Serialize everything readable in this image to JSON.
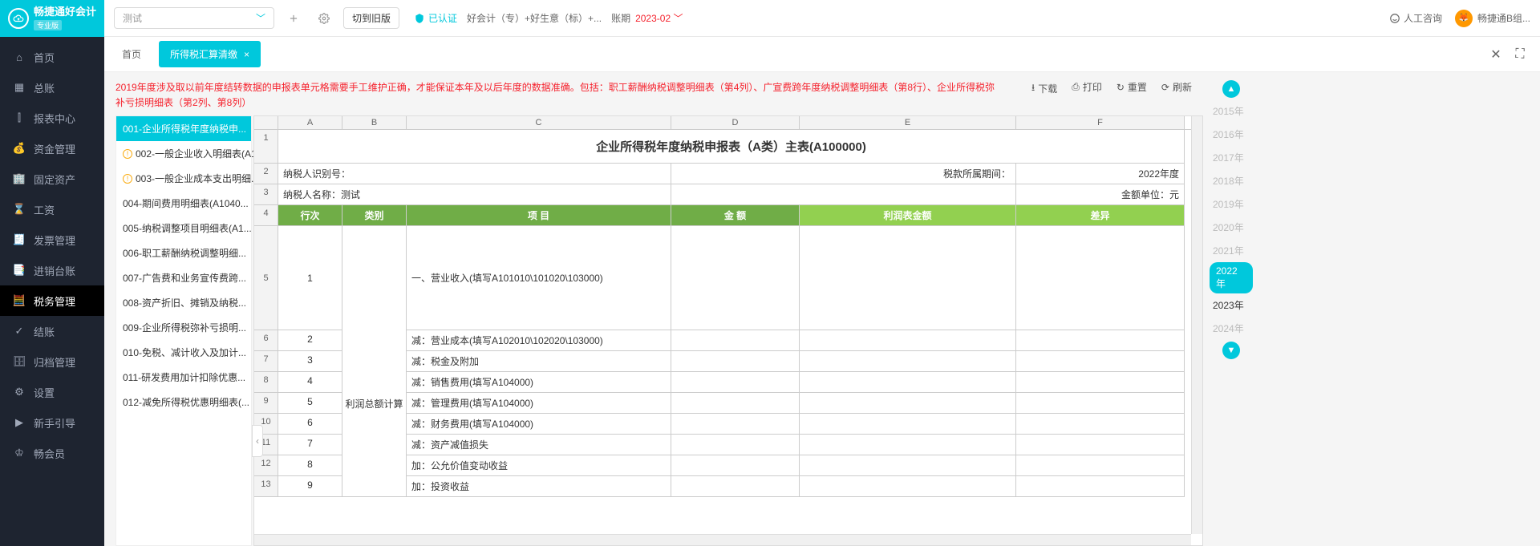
{
  "brand": {
    "name": "畅捷通好会计",
    "edition": "专业版"
  },
  "topbar": {
    "company": "测试",
    "old_version": "切到旧版",
    "status": "已认证",
    "plan": "好会计（专）+好生意（标）+...",
    "period_label": "账期",
    "period_value": "2023-02",
    "support": "人工咨询",
    "user": "畅捷通B组..."
  },
  "sidebar": [
    {
      "label": "首页"
    },
    {
      "label": "总账"
    },
    {
      "label": "报表中心"
    },
    {
      "label": "资金管理"
    },
    {
      "label": "固定资产"
    },
    {
      "label": "工资"
    },
    {
      "label": "发票管理"
    },
    {
      "label": "进销台账"
    },
    {
      "label": "税务管理",
      "active": true
    },
    {
      "label": "结账"
    },
    {
      "label": "归档管理"
    },
    {
      "label": "设置"
    },
    {
      "label": "新手引导"
    },
    {
      "label": "畅会员"
    }
  ],
  "tabs": {
    "home": "首页",
    "active": "所得税汇算清缴"
  },
  "notice": "2019年度涉及取以前年度结转数据的申报表单元格需要手工维护正确，才能保证本年及以后年度的数据准确。包括：职工薪酬纳税调整明细表（第4列）、广宣费跨年度纳税调整明细表（第8行）、企业所得税弥补亏损明细表（第2列、第8列）",
  "toolbar": {
    "download": "下载",
    "print": "打印",
    "reset": "重置",
    "refresh": "刷新"
  },
  "form_list": [
    {
      "label": "001-企业所得税年度纳税申...",
      "active": true
    },
    {
      "label": "002-一般企业收入明细表(A1...",
      "warn": true
    },
    {
      "label": "003-一般企业成本支出明细...",
      "warn": true
    },
    {
      "label": "004-期间费用明细表(A1040..."
    },
    {
      "label": "005-纳税调整项目明细表(A1..."
    },
    {
      "label": "006-职工薪酬纳税调整明细..."
    },
    {
      "label": "007-广告费和业务宣传费跨..."
    },
    {
      "label": "008-资产折旧、摊销及纳税..."
    },
    {
      "label": "009-企业所得税弥补亏损明..."
    },
    {
      "label": "010-免税、减计收入及加计..."
    },
    {
      "label": "011-研发费用加计扣除优惠..."
    },
    {
      "label": "012-减免所得税优惠明细表(..."
    }
  ],
  "sheet": {
    "cols": [
      "A",
      "B",
      "C",
      "D",
      "E",
      "F"
    ],
    "title": "企业所得税年度纳税申报表（A类）主表(A100000)",
    "taxpayer_id_label": "纳税人识别号：",
    "period_label": "税款所属期间：",
    "period_value": "2022年度",
    "taxpayer_name_label": "纳税人名称：",
    "taxpayer_name_value": "测试",
    "unit_label": "金额单位：元",
    "headers": {
      "row": "行次",
      "cat": "类别",
      "item": "项      目",
      "amount": "金      额",
      "profit": "利润表金额",
      "diff": "差异"
    },
    "category": "利润总额计算",
    "rows": [
      {
        "n": "1",
        "item": "一、营业收入(填写A101010\\101020\\103000)"
      },
      {
        "n": "2",
        "item": "减：营业成本(填写A102010\\102020\\103000)"
      },
      {
        "n": "3",
        "item": "减：税金及附加"
      },
      {
        "n": "4",
        "item": "减：销售费用(填写A104000)"
      },
      {
        "n": "5",
        "item": "减：管理费用(填写A104000)"
      },
      {
        "n": "6",
        "item": "减：财务费用(填写A104000)"
      },
      {
        "n": "7",
        "item": "减：资产减值损失"
      },
      {
        "n": "8",
        "item": "加：公允价值变动收益"
      },
      {
        "n": "9",
        "item": "加：投资收益"
      }
    ]
  },
  "years": [
    "2015年",
    "2016年",
    "2017年",
    "2018年",
    "2019年",
    "2020年",
    "2021年",
    "2022年",
    "2023年",
    "2024年"
  ],
  "active_year": "2022年"
}
